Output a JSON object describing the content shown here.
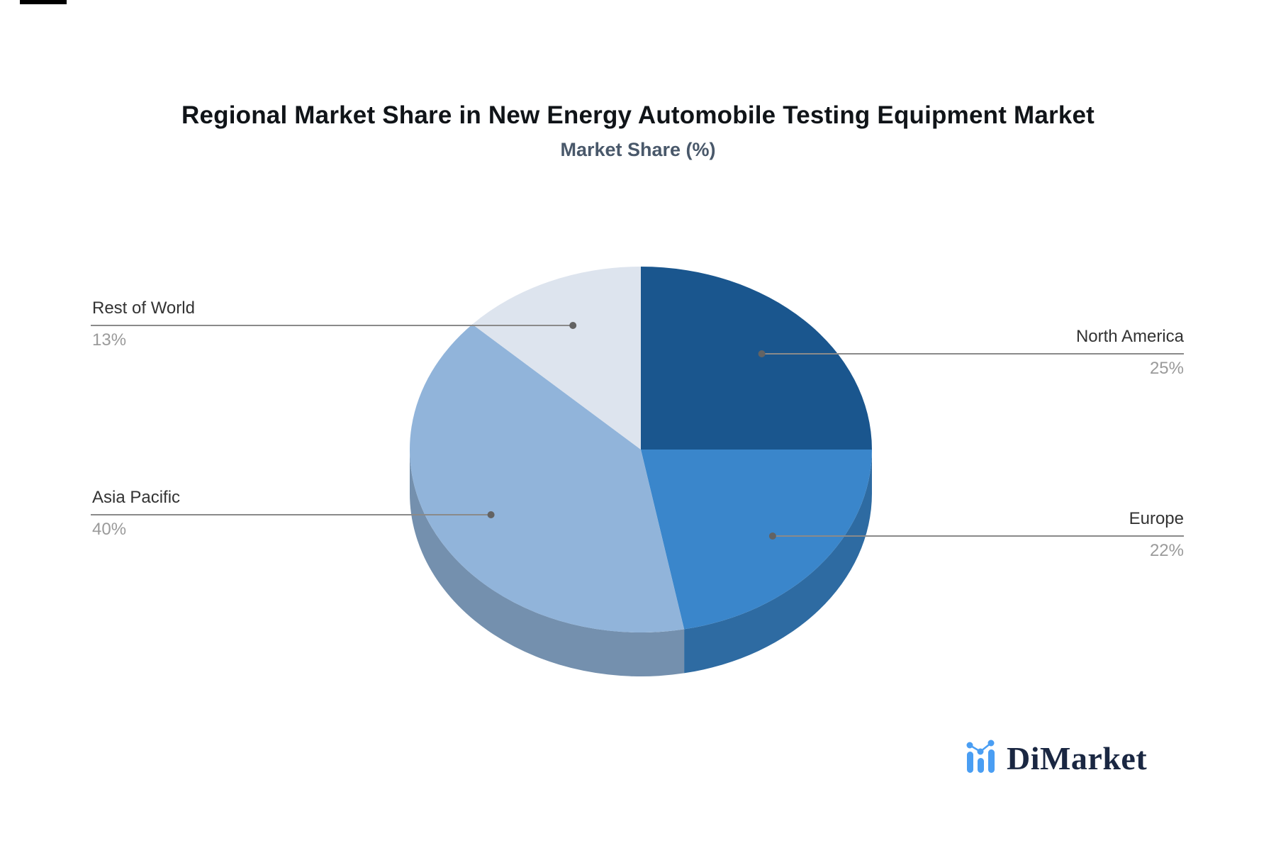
{
  "header": {
    "title": "Regional Market Share in New Energy Automobile Testing Equipment Market",
    "subtitle": "Market Share (%)"
  },
  "chart_data": {
    "type": "pie",
    "title": "Regional Market Share in New Energy Automobile Testing Equipment Market",
    "subtitle": "Market Share (%)",
    "unit": "%",
    "effect": "3d-depth",
    "start_angle_deg": 0,
    "direction": "clockwise",
    "legend_position": "callout-labels",
    "categories": [
      "North America",
      "Europe",
      "Asia Pacific",
      "Rest of World"
    ],
    "values": [
      25,
      22,
      40,
      13
    ],
    "slices": [
      {
        "name": "North America",
        "value": 25,
        "pct_label": "25%",
        "color": "#1A568E"
      },
      {
        "name": "Europe",
        "value": 22,
        "pct_label": "22%",
        "color": "#3A86CB"
      },
      {
        "name": "Asia Pacific",
        "value": 40,
        "pct_label": "40%",
        "color": "#91B4DA"
      },
      {
        "name": "Rest of World",
        "value": 13,
        "pct_label": "13%",
        "color": "#DDE4EE"
      }
    ],
    "callout_line_color": "#8A8A8A",
    "callout_dot_color": "#636363",
    "label_text_color": "#333333",
    "pct_text_color": "#9A9A9A"
  },
  "branding": {
    "logo_text": "DiMarket",
    "logo_text_color": "#1A2742",
    "logo_icon": "bar-chart-with-trend-dots-icon",
    "logo_icon_color": "#4A9EF3"
  }
}
